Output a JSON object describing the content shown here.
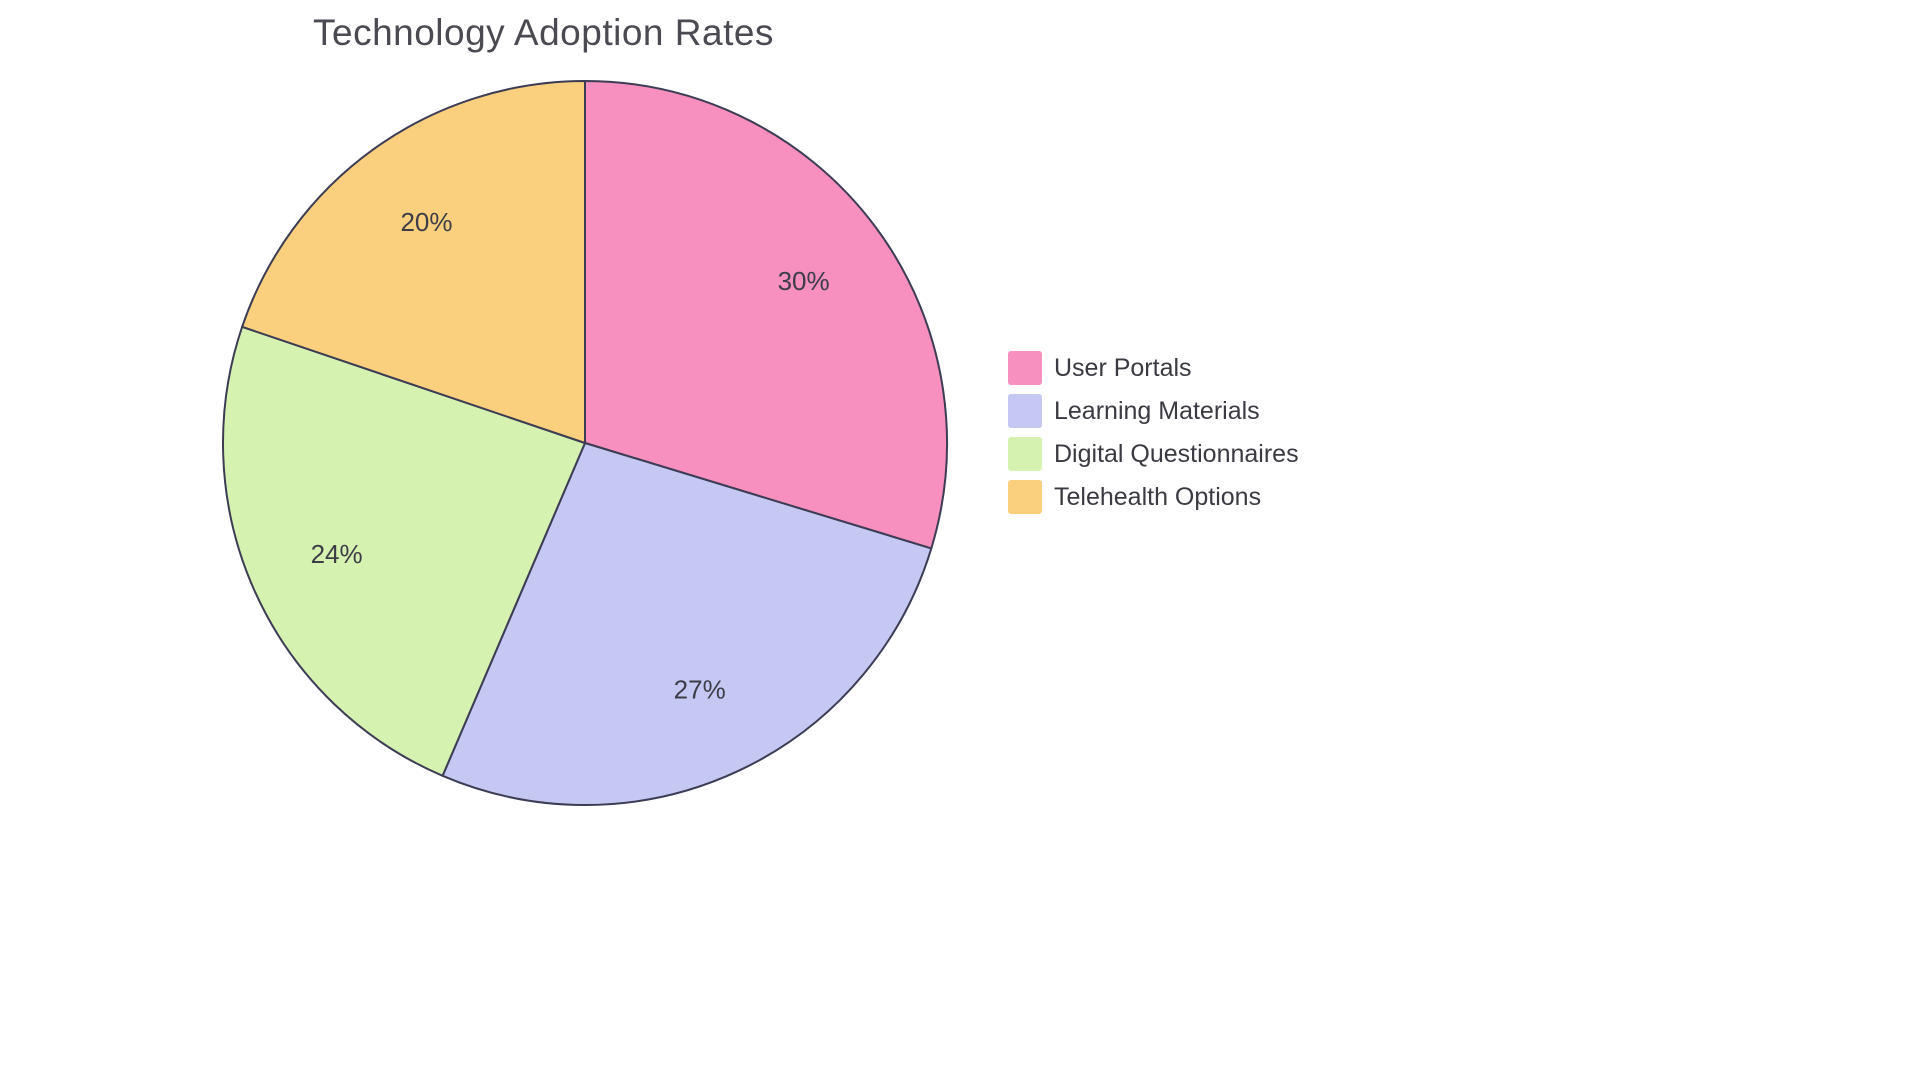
{
  "page": {
    "background": "#FFFFFF"
  },
  "chart_data": {
    "type": "pie",
    "title": "Technology Adoption Rates",
    "labels": [
      "User Portals",
      "Learning Materials",
      "Digital Questionnaires",
      "Telehealth Options"
    ],
    "values": [
      30,
      27,
      24,
      20
    ],
    "percent_labels": [
      "30%",
      "27%",
      "24%",
      "20%"
    ],
    "colors": [
      "#F78FBF",
      "#C5C8F2",
      "#D6F2B0",
      "#FAD07E"
    ],
    "border_color": "#3C3C55",
    "label_color": "#3D3D47",
    "title_color": "#4A4A52",
    "legend_position": "right",
    "start_angle_deg": -90,
    "direction": "clockwise"
  }
}
